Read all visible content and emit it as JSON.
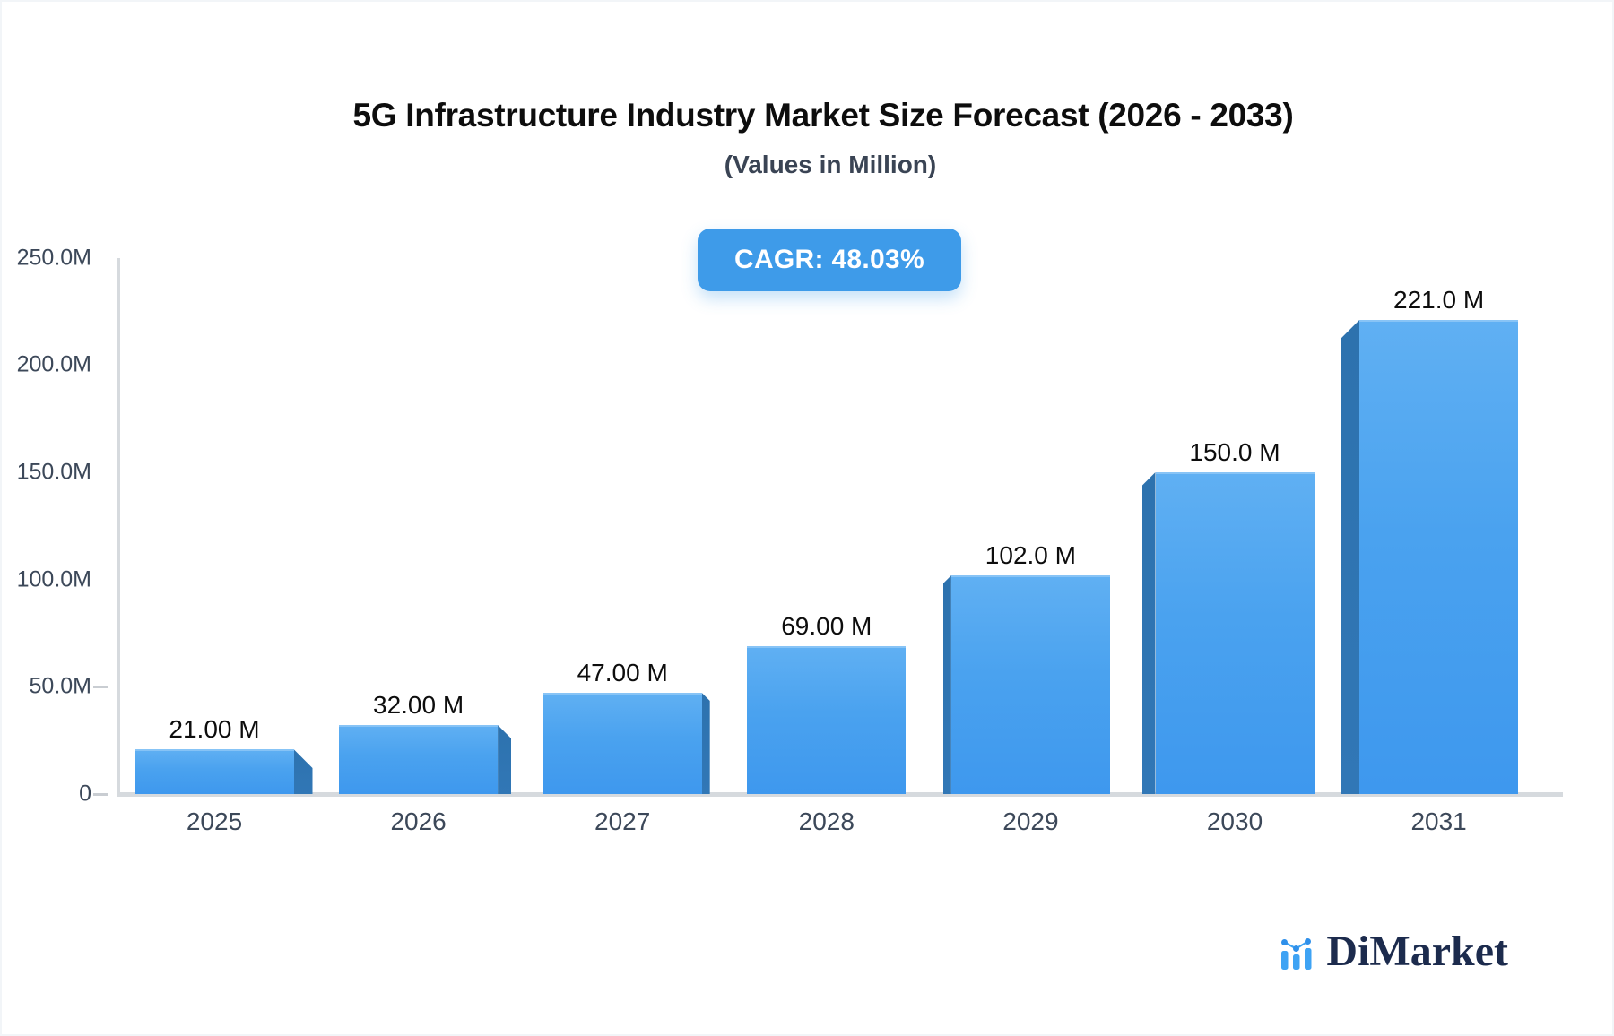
{
  "title": "5G Infrastructure Industry Market Size Forecast (2026 - 2033)",
  "subtitle": "(Values in Million)",
  "badge": {
    "label": "CAGR: 48.03%",
    "bg": "#3e9be9",
    "text_color": "#ffffff"
  },
  "brand": {
    "name": "DiMarket",
    "icon": "bar-chart-logo-icon",
    "text_color": "#1c2b4d",
    "icon_color": "#3ea3f4"
  },
  "chart_data": {
    "type": "bar",
    "title": "5G Infrastructure Industry Market Size Forecast (2026 - 2033)",
    "subtitle": "(Values in Million)",
    "categories": [
      "2025",
      "2026",
      "2027",
      "2028",
      "2029",
      "2030",
      "2031"
    ],
    "values": [
      21,
      32,
      47,
      69,
      102,
      150,
      221
    ],
    "unit": "Million",
    "value_labels": [
      "21.00 M",
      "32.00 M",
      "47.00 M",
      "69.00 M",
      "102.0 M",
      "150.0 M",
      "221.0 M"
    ],
    "y_ticks": [
      "250.0M",
      "200.0M",
      "150.0M",
      "100.0M",
      "50.0M",
      "0"
    ],
    "y_tick_values": [
      250,
      200,
      150,
      100,
      50,
      0
    ],
    "y_ticks_with_dash": [
      "50.0M",
      "0"
    ],
    "ylim": [
      0,
      250
    ],
    "xlabel": "",
    "ylabel": "",
    "grid": false,
    "legend": false,
    "bar_face_top_color": "#60b0f3",
    "bar_face_bottom_color": "#3e98ee",
    "bar_side_color": "#2d72ae",
    "axis_color": "#d6dade",
    "tick_label_color": "#3c4859",
    "value_label_color": "#0d0d0d"
  }
}
